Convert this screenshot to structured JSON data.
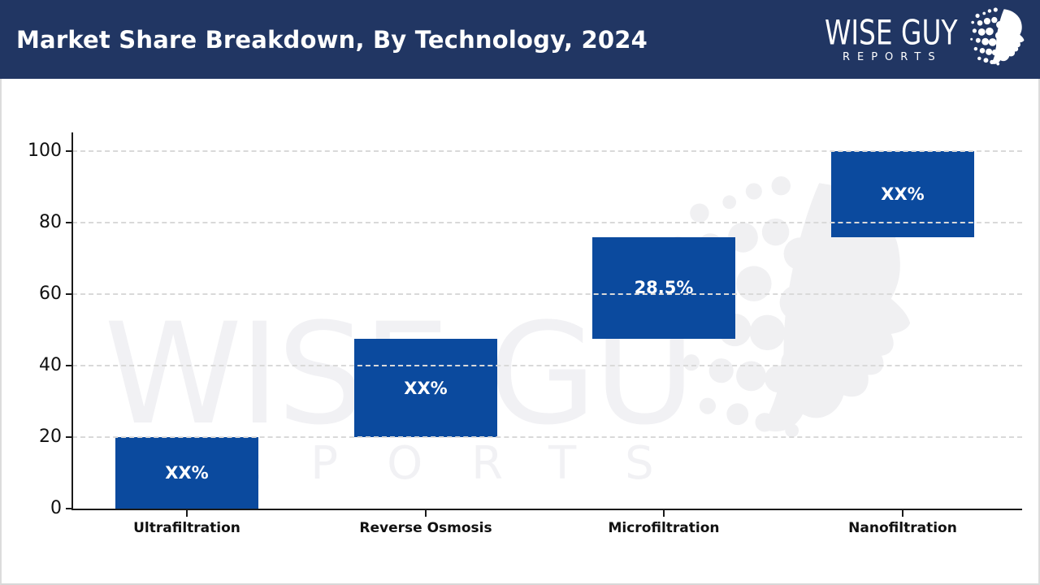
{
  "header": {
    "title": "Market Share Breakdown, By Technology, 2024",
    "logo": {
      "line1": "WISE GUY",
      "line2": "REPORTS"
    }
  },
  "watermark": {
    "line1": "WISE GU",
    "line2": "REPORTS"
  },
  "colors": {
    "header_bg": "#213663",
    "bar": "#0b4a9e",
    "gridline": "#d9d9d9",
    "axis": "#1a1a1a",
    "watermark": "#f1f1f4",
    "bar_label": "#ffffff",
    "title_text": "#ffffff"
  },
  "chart_data": {
    "type": "bar",
    "subtype": "floating-segment-waterfall",
    "title": "Market Share Breakdown, By Technology, 2024",
    "categories": [
      "Ultrafiltration",
      "Reverse Osmosis",
      "Microfiltration",
      "Nanofiltration"
    ],
    "segments": [
      {
        "category": "Ultrafiltration",
        "start": 0,
        "end": 20,
        "height": 20,
        "label": "XX%"
      },
      {
        "category": "Reverse Osmosis",
        "start": 20,
        "end": 47.5,
        "height": 27.5,
        "label": "XX%"
      },
      {
        "category": "Microfiltration",
        "start": 47.5,
        "end": 76,
        "height": 28.5,
        "label": "28.5%"
      },
      {
        "category": "Nanofiltration",
        "start": 76,
        "end": 100,
        "height": 24,
        "label": "XX%"
      }
    ],
    "xlabel": "",
    "ylabel": "",
    "ylim": [
      0,
      100
    ],
    "yticks": [
      0,
      20,
      40,
      60,
      80,
      100
    ],
    "grid": "horizontal dashed, drawn over bars",
    "legend": "none",
    "bar_color": "#0b4a9e"
  }
}
